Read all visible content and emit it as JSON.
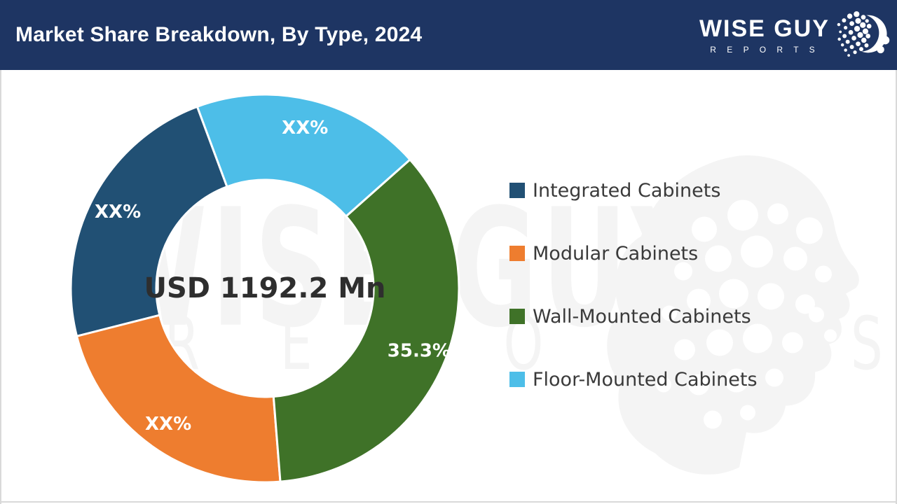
{
  "header": {
    "title": "Market Share Breakdown, By Type, 2024",
    "logo_line1": "WISE GUY",
    "logo_line2": "R E P O R T S"
  },
  "watermark": {
    "line1": "WISE GUY",
    "line2": "R E P O R T S"
  },
  "chart_data": {
    "type": "pie",
    "donut": true,
    "title": "Market Share Breakdown, By Type, 2024",
    "center_label": "USD 1192.2 Mn",
    "legend_position": "right",
    "start_angle_deg": 110.4,
    "direction": "counterclockwise",
    "segments": [
      {
        "name": "Integrated Cabinets",
        "share_pct": 23.3,
        "display_label": "XX%",
        "color": "#215074"
      },
      {
        "name": "Modular Cabinets",
        "share_pct": 22.3,
        "display_label": "XX%",
        "color": "#EE7D2F"
      },
      {
        "name": "Wall-Mounted Cabinets",
        "share_pct": 35.3,
        "display_label": "35.3%",
        "color": "#3F7228"
      },
      {
        "name": "Floor-Mounted Cabinets",
        "share_pct": 19.1,
        "display_label": "XX%",
        "color": "#4DBEE8"
      }
    ]
  },
  "colors": {
    "header_background": "#1E3563",
    "legend_text": "#3A3A3A",
    "center_text": "#2E2E2E",
    "watermark": "#F4F4F4"
  }
}
